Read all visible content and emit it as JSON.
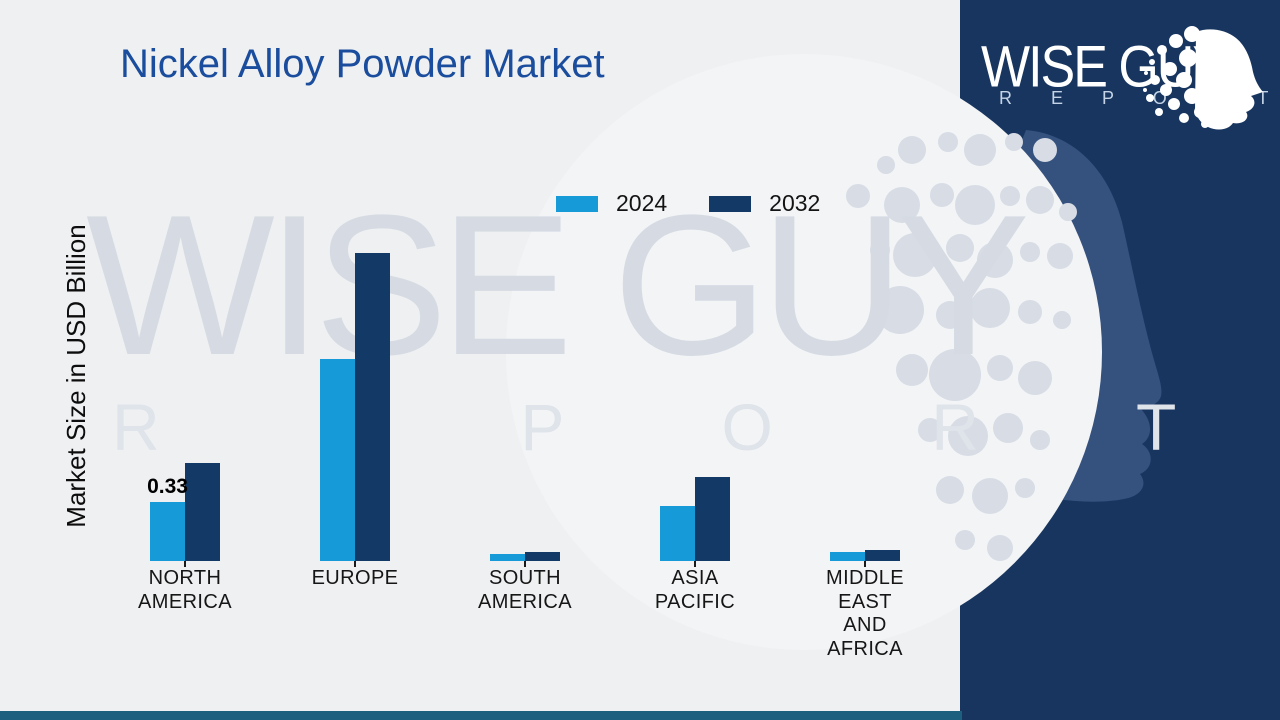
{
  "page": {
    "title": "Nickel Alloy Powder Market",
    "title_color": "#1A4D9D",
    "background_color": "#EFF0F2",
    "bottom_accent_color": "#1D5F7F"
  },
  "branding": {
    "logo_line1": "WISE GUY",
    "logo_line2": "R E P O R T S",
    "panel_color": "#17355F",
    "face_silhouette_color": "#35517E",
    "logo_text_color": "#FFFFFF"
  },
  "watermark": {
    "line1": "WISE GUY",
    "line2": "R E P O R T S"
  },
  "chart_data": {
    "type": "bar",
    "title": "Nickel Alloy Powder Market",
    "xlabel": "",
    "ylabel": "Market Size in USD Billion",
    "categories": [
      "NORTH AMERICA",
      "EUROPE",
      "SOUTH AMERICA",
      "ASIA PACIFIC",
      "MIDDLE EAST AND AFRICA"
    ],
    "category_display": [
      "NORTH\nAMERICA",
      "EUROPE",
      "SOUTH\nAMERICA",
      "ASIA\nPACIFIC",
      "MIDDLE\nEAST\nAND\nAFRICA"
    ],
    "series": [
      {
        "name": "2024",
        "color": "#169BD8",
        "values": [
          0.33,
          1.13,
          0.04,
          0.31,
          0.05
        ]
      },
      {
        "name": "2032",
        "color": "#133A66",
        "values": [
          0.55,
          1.72,
          0.05,
          0.47,
          0.06
        ]
      }
    ],
    "annotations": [
      {
        "category": "NORTH AMERICA",
        "series": "2024",
        "text": "0.33"
      }
    ],
    "unit": "USD Billion",
    "ylim": [
      0,
      1.85
    ],
    "grid": false,
    "legend_position": "top-center",
    "y_axis_ticks_visible": false
  }
}
